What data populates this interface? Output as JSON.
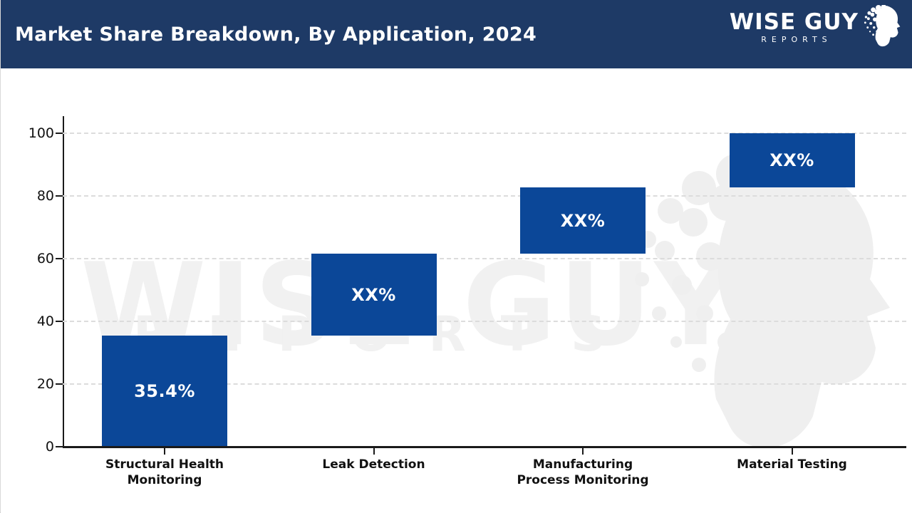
{
  "header": {
    "title": "Market Share Breakdown, By Application, 2024",
    "logo": {
      "name": "WISE GUY",
      "subtitle": "REPORTS"
    }
  },
  "watermark": {
    "line1": "WISE GUY",
    "line2": "REPORTS"
  },
  "colors": {
    "header_bg": "#1e3a66",
    "bar": "#0b4798",
    "axis": "#1a1a1a",
    "gridline": "#dcdcdc",
    "watermark": "#f1f1f1",
    "label_on_bar": "#ffffff"
  },
  "chart_data": {
    "type": "bar",
    "subtype": "waterfall",
    "title": "Market Share Breakdown, By Application, 2024",
    "xlabel": "",
    "ylabel": "",
    "ylim": [
      0,
      100
    ],
    "yticks": [
      0,
      20,
      40,
      60,
      80,
      100
    ],
    "grid": "horizontal-dashed",
    "legend": "none",
    "bar_color": "#0b4798",
    "bars": [
      {
        "category": "Structural Health\nMonitoring",
        "start": 0,
        "end": 35.4,
        "label": "35.4%"
      },
      {
        "category": "Leak Detection",
        "start": 35.4,
        "end": 61.5,
        "label": "XX%"
      },
      {
        "category": "Manufacturing\nProcess Monitoring",
        "start": 61.5,
        "end": 82.7,
        "label": "XX%"
      },
      {
        "category": "Material Testing",
        "start": 82.7,
        "end": 100,
        "label": "XX%"
      }
    ]
  }
}
